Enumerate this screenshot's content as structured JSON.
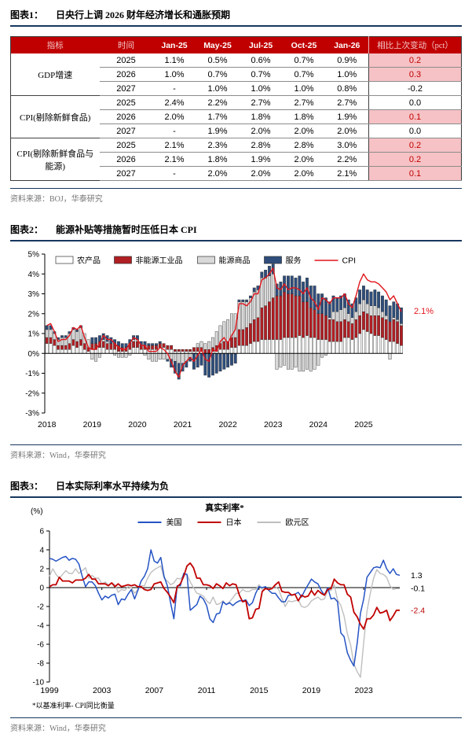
{
  "figure1": {
    "label": "图表1：",
    "title": "日央行上调 2026 财年经济增长和通胀预期",
    "source": "资料来源：BOJ，华泰研究",
    "table": {
      "headers": [
        "指标",
        "时间",
        "Jan-25",
        "May-25",
        "Jul-25",
        "Oct-25",
        "Jan-26",
        "相比上次变动（pct）"
      ],
      "groups": [
        {
          "indicator": "GDP增速",
          "rows": [
            {
              "year": "2025",
              "values": [
                "1.1%",
                "0.5%",
                "0.6%",
                "0.7%",
                "0.9%"
              ],
              "change": "0.2",
              "highlight": true
            },
            {
              "year": "2026",
              "values": [
                "1.0%",
                "0.7%",
                "0.7%",
                "0.7%",
                "1.0%"
              ],
              "change": "0.3",
              "highlight": true
            },
            {
              "year": "2027",
              "values": [
                "-",
                "1.0%",
                "1.0%",
                "1.0%",
                "0.8%"
              ],
              "change": "-0.2",
              "highlight": false
            }
          ]
        },
        {
          "indicator": "CPI(剔除新鲜食品)",
          "rows": [
            {
              "year": "2025",
              "values": [
                "2.4%",
                "2.2%",
                "2.7%",
                "2.7%",
                "2.7%"
              ],
              "change": "0.0",
              "highlight": false
            },
            {
              "year": "2026",
              "values": [
                "2.0%",
                "1.7%",
                "1.8%",
                "1.8%",
                "1.9%"
              ],
              "change": "0.1",
              "highlight": true
            },
            {
              "year": "2027",
              "values": [
                "-",
                "1.9%",
                "2.0%",
                "2.0%",
                "2.0%"
              ],
              "change": "0.0",
              "highlight": false
            }
          ]
        },
        {
          "indicator": "CPI(剔除新鲜食品与能源)",
          "rows": [
            {
              "year": "2025",
              "values": [
                "2.1%",
                "2.3%",
                "2.8%",
                "2.8%",
                "3.0%"
              ],
              "change": "0.2",
              "highlight": true
            },
            {
              "year": "2026",
              "values": [
                "2.1%",
                "1.8%",
                "1.9%",
                "2.0%",
                "2.2%"
              ],
              "change": "0.2",
              "highlight": true
            },
            {
              "year": "2027",
              "values": [
                "-",
                "2.0%",
                "2.0%",
                "2.0%",
                "2.1%"
              ],
              "change": "0.1",
              "highlight": true
            }
          ]
        }
      ]
    }
  },
  "figure2": {
    "label": "图表2：",
    "title": "能源补贴等措施暂时压低日本 CPI",
    "source": "资料来源：Wind，华泰研究"
  },
  "figure3": {
    "label": "图表3：",
    "title": "日本实际利率水平持续为负",
    "footnote": "*以基准利率- CPI同比衡量",
    "source": "资料来源：Wind，华泰研究"
  },
  "colors": {
    "accent_red": "#C00000",
    "pink_highlight": "#F6C2C5",
    "navy_rule": "#17375E"
  },
  "chart_data": [
    {
      "id": "cpi-decomp",
      "type": "bar",
      "subtype": "stacked-bars-with-line",
      "start_year": 2018,
      "frequency": "monthly",
      "ylim": [
        -3,
        5
      ],
      "ytick_step": 1,
      "ytick_suffix": "%",
      "x_year_labels": [
        2018,
        2019,
        2020,
        2021,
        2022,
        2023,
        2024,
        2025
      ],
      "end_label": "2.1%",
      "bar_stroke": "#2b2b2b",
      "series": [
        {
          "name": "农产品",
          "color": "#FFFFFF",
          "values": [
            0.5,
            0.5,
            0.4,
            0.2,
            0.2,
            0.2,
            0.2,
            0.4,
            0.3,
            0.4,
            0.2,
            0.1,
            0.2,
            0.2,
            0.3,
            0.3,
            0.2,
            0.2,
            0.2,
            0.1,
            0.1,
            0.1,
            0.2,
            0.3,
            0.3,
            0.2,
            0.2,
            0.2,
            0.2,
            0.2,
            0.3,
            0.3,
            0.2,
            0.2,
            0.1,
            0.1,
            0.1,
            0.1,
            0.1,
            0.1,
            0.1,
            0.1,
            0.0,
            0.0,
            0.1,
            0.1,
            0.2,
            0.2,
            0.2,
            0.3,
            0.3,
            0.4,
            0.4,
            0.4,
            0.5,
            0.6,
            0.6,
            0.7,
            0.7,
            0.7,
            0.7,
            0.7,
            0.7,
            0.8,
            0.8,
            0.8,
            0.8,
            0.9,
            0.8,
            0.9,
            0.8,
            0.8,
            0.7,
            0.7,
            0.7,
            0.6,
            0.6,
            0.6,
            0.6,
            0.8,
            0.8,
            0.7,
            0.8,
            1.0,
            1.2,
            1.1,
            1.0,
            0.9,
            0.9,
            0.8,
            0.7,
            0.6,
            0.6,
            0.5,
            0.4
          ]
        },
        {
          "name": "非能源工业品",
          "color": "#B01E23",
          "values": [
            0.3,
            0.3,
            0.3,
            0.2,
            0.2,
            0.2,
            0.3,
            0.3,
            0.3,
            0.3,
            0.3,
            0.2,
            0.3,
            0.3,
            0.3,
            0.3,
            0.3,
            0.3,
            0.3,
            0.3,
            0.2,
            0.2,
            0.3,
            0.3,
            0.3,
            0.2,
            0.2,
            0.2,
            0.2,
            0.2,
            0.2,
            0.2,
            0.2,
            0.2,
            0.1,
            0.1,
            0.1,
            0.1,
            0.1,
            0.2,
            0.2,
            0.2,
            0.2,
            0.2,
            0.2,
            0.3,
            0.3,
            0.4,
            0.4,
            0.5,
            0.5,
            0.8,
            0.8,
            0.9,
            1.0,
            1.1,
            1.2,
            1.6,
            1.7,
            1.9,
            2.1,
            2.2,
            2.2,
            2.3,
            2.2,
            2.2,
            2.1,
            2.0,
            1.8,
            1.7,
            1.5,
            1.4,
            1.3,
            1.3,
            1.2,
            1.1,
            1.1,
            1.0,
            1.0,
            0.9,
            0.8,
            0.8,
            0.9,
            0.9,
            0.9,
            0.9,
            0.9,
            1.0,
            1.0,
            1.0,
            1.0,
            1.0,
            1.1,
            1.1,
            1.0
          ]
        },
        {
          "name": "能源商品",
          "color": "#D9D9D9",
          "values": [
            0.4,
            0.4,
            0.3,
            0.3,
            0.4,
            0.4,
            0.5,
            0.5,
            0.5,
            0.6,
            0.5,
            0.4,
            -0.3,
            -0.4,
            -0.2,
            0.1,
            0.1,
            0.0,
            -0.1,
            -0.2,
            -0.2,
            -0.2,
            -0.1,
            0.1,
            0.1,
            0.0,
            -0.1,
            -0.3,
            -0.4,
            -0.4,
            -0.3,
            -0.3,
            -0.3,
            -0.3,
            -0.4,
            -0.5,
            -0.5,
            -0.4,
            -0.2,
            0.0,
            0.2,
            0.3,
            0.3,
            0.4,
            0.5,
            0.7,
            0.9,
            1.0,
            1.1,
            1.2,
            1.2,
            1.4,
            1.4,
            1.3,
            1.3,
            1.4,
            1.4,
            1.5,
            1.4,
            1.3,
            1.2,
            -0.8,
            -0.7,
            -0.6,
            -0.8,
            -0.8,
            -0.7,
            -0.9,
            -0.9,
            -0.8,
            -0.9,
            -0.8,
            -0.6,
            -0.2,
            -0.1,
            0.1,
            0.4,
            0.5,
            0.6,
            0.6,
            0.4,
            0.3,
            0.4,
            0.6,
            0.6,
            0.5,
            0.5,
            0.5,
            0.4,
            0.3,
            0.2,
            -0.3,
            0.1,
            0.1,
            0.1
          ]
        },
        {
          "name": "服务",
          "color": "#2E4D7B",
          "values": [
            0.2,
            0.2,
            0.1,
            0.1,
            0.1,
            0.1,
            0.1,
            0.1,
            0.1,
            0.1,
            0.0,
            0.0,
            0.3,
            0.3,
            0.3,
            0.3,
            0.3,
            0.3,
            0.2,
            0.2,
            0.2,
            0.2,
            0.2,
            0.2,
            0.2,
            0.2,
            0.2,
            0.1,
            0.1,
            0.1,
            0.1,
            0.0,
            -0.1,
            -0.4,
            -0.6,
            -0.8,
            -0.4,
            -0.3,
            -0.2,
            -0.8,
            -0.7,
            -0.6,
            -1.1,
            -1.2,
            -1.1,
            -1.0,
            -0.9,
            -0.8,
            -0.7,
            -0.6,
            -0.5,
            0.1,
            0.1,
            0.1,
            0.1,
            0.2,
            0.2,
            0.3,
            0.4,
            0.5,
            0.5,
            0.6,
            0.7,
            0.8,
            0.9,
            0.9,
            0.9,
            1.0,
            1.0,
            1.2,
            1.1,
            1.2,
            1.0,
            1.0,
            0.9,
            0.8,
            0.8,
            0.7,
            0.7,
            0.7,
            0.7,
            0.7,
            0.7,
            0.7,
            0.7,
            0.7,
            0.7,
            0.8,
            0.8,
            0.8,
            0.8,
            0.8,
            0.8,
            0.8,
            0.8
          ]
        }
      ],
      "line": {
        "name": "CPI",
        "color": "#E0151B",
        "values": [
          1.4,
          1.5,
          1.1,
          0.6,
          0.7,
          0.7,
          0.9,
          1.3,
          1.2,
          1.4,
          0.8,
          0.3,
          0.2,
          0.2,
          0.5,
          0.9,
          0.7,
          0.7,
          0.5,
          0.3,
          0.2,
          0.2,
          0.5,
          0.8,
          0.7,
          0.4,
          0.4,
          0.1,
          0.1,
          0.1,
          0.3,
          0.2,
          0.0,
          -0.4,
          -0.9,
          -1.2,
          -0.6,
          -0.4,
          -0.2,
          -0.4,
          -0.1,
          0.2,
          -0.3,
          -0.4,
          0.2,
          0.1,
          0.6,
          0.8,
          0.5,
          0.9,
          1.2,
          2.5,
          2.5,
          2.4,
          2.6,
          3.0,
          3.0,
          3.7,
          3.8,
          4.0,
          4.3,
          3.3,
          3.2,
          3.5,
          3.2,
          3.3,
          3.3,
          3.2,
          3.0,
          3.3,
          2.8,
          2.6,
          2.2,
          2.8,
          2.7,
          2.5,
          2.8,
          2.8,
          2.8,
          3.0,
          2.5,
          2.3,
          2.9,
          3.6,
          4.0,
          3.7,
          3.6,
          3.6,
          3.5,
          3.3,
          3.1,
          2.7,
          2.9,
          2.5,
          2.1
        ]
      }
    },
    {
      "id": "real-rates",
      "type": "line",
      "title": "真实利率*",
      "ylabel": "(%)",
      "start_year": 1999,
      "frequency": "quarterly",
      "ylim": [
        -10,
        6
      ],
      "ytick_step": 2,
      "x_year_labels": [
        1999,
        2003,
        2007,
        2011,
        2015,
        2019,
        2023
      ],
      "series": [
        {
          "name": "美国",
          "color": "#2553C4",
          "width": 1.5,
          "values": [
            3.1,
            3.0,
            2.8,
            3.0,
            3.2,
            3.3,
            2.9,
            3.1,
            3.0,
            2.5,
            1.2,
            0.1,
            0.6,
            0.6,
            0.2,
            -0.6,
            -1.3,
            -0.9,
            -1.1,
            -0.8,
            -0.7,
            -1.8,
            -1.2,
            -1.3,
            -0.7,
            -0.2,
            -1.2,
            -0.3,
            0.7,
            1.2,
            2.0,
            4.0,
            2.8,
            2.6,
            3.2,
            1.2,
            0.2,
            -1.6,
            -3.3,
            0.2,
            0.2,
            1.5,
            1.4,
            -2.4,
            -2.1,
            -1.8,
            -0.9,
            -1.2,
            -1.9,
            -3.3,
            -3.7,
            -2.8,
            -2.7,
            -1.5,
            -1.8,
            -1.6,
            -1.9,
            -1.6,
            -1.4,
            -1.4,
            -1.3,
            -1.9,
            -1.6,
            -0.6,
            0.1,
            0.0,
            0.1,
            -0.3,
            -0.6,
            -0.6,
            -1.1,
            -1.5,
            -1.5,
            -0.8,
            -0.8,
            -0.7,
            -0.5,
            -1.0,
            -0.3,
            0.3,
            0.9,
            0.6,
            0.4,
            -0.3,
            -0.8,
            0.0,
            -1.2,
            -1.1,
            -1.5,
            -4.8,
            -5.2,
            -6.9,
            -7.7,
            -8.3,
            -5.9,
            -2.7,
            -1.2,
            1.1,
            1.6,
            2.1,
            2.2,
            2.1,
            2.9,
            2.0,
            1.5,
            2.0,
            1.4,
            1.3
          ]
        },
        {
          "name": "日本",
          "color": "#C00000",
          "width": 1.8,
          "values": [
            0.1,
            0.3,
            0.3,
            1.1,
            0.7,
            0.7,
            0.7,
            0.5,
            0.8,
            0.8,
            0.8,
            1.0,
            1.4,
            0.9,
            0.9,
            0.4,
            0.4,
            0.4,
            0.2,
            0.5,
            0.1,
            0.4,
            0.1,
            0.2,
            0.3,
            0.2,
            0.3,
            0.1,
            0.1,
            -0.2,
            -0.3,
            -0.2,
            0.4,
            0.5,
            0.6,
            -0.1,
            -0.5,
            -1.0,
            -1.6,
            0.1,
            0.4,
            1.2,
            2.3,
            2.6,
            2.1,
            1.0,
            1.0,
            0.3,
            0.3,
            0.2,
            -0.1,
            0.4,
            0.2,
            -0.1,
            0.5,
            0.2,
            0.4,
            0.3,
            -0.8,
            -1.5,
            -1.4,
            -3.3,
            -3.2,
            -2.3,
            -2.2,
            -0.4,
            -0.1,
            -0.2,
            -0.1,
            0.3,
            0.6,
            -0.4,
            -0.5,
            -0.5,
            -0.8,
            -0.7,
            -1.4,
            -0.8,
            -1.0,
            -0.9,
            -0.3,
            -0.8,
            -0.3,
            -0.6,
            -0.8,
            -0.2,
            -0.1,
            0.9,
            0.5,
            0.3,
            0.3,
            -0.7,
            -1.0,
            -2.6,
            -3.1,
            -3.9,
            -4.4,
            -3.3,
            -3.3,
            -2.9,
            -2.1,
            -2.7,
            -2.6,
            -2.4,
            -3.5,
            -3.0,
            -2.4,
            -2.4
          ]
        },
        {
          "name": "欧元区",
          "color": "#BFBFBF",
          "width": 1.4,
          "values": [
            1.2,
            2.0,
            1.4,
            1.0,
            1.4,
            1.8,
            1.5,
            1.5,
            2.0,
            1.5,
            1.8,
            2.1,
            1.0,
            1.3,
            1.0,
            1.0,
            0.4,
            0.6,
            0.3,
            0.5,
            0.3,
            -0.5,
            -0.2,
            -0.3,
            0.1,
            0.0,
            -0.6,
            -0.2,
            0.2,
            0.2,
            1.0,
            1.6,
            1.9,
            2.1,
            2.3,
            1.0,
            0.7,
            0.3,
            0.5,
            1.0,
            0.9,
            1.3,
            1.4,
            0.6,
            0.0,
            -0.6,
            -0.7,
            -0.9,
            -1.4,
            -1.7,
            -1.0,
            -1.8,
            -1.7,
            -1.4,
            -1.8,
            -1.5,
            -1.1,
            -0.6,
            -0.6,
            -0.2,
            -0.4,
            -0.4,
            -0.2,
            -0.2,
            0.3,
            -0.2,
            -0.1,
            -0.2,
            0.0,
            0.1,
            -0.2,
            -1.1,
            -2.0,
            -1.4,
            -1.5,
            -1.4,
            -1.3,
            -2.0,
            -2.1,
            -1.9,
            -1.4,
            -1.2,
            -1.0,
            -1.3,
            -1.2,
            -0.3,
            -0.3,
            0.3,
            -1.3,
            -1.9,
            -3.0,
            -4.9,
            -6.1,
            -8.1,
            -8.9,
            -9.5,
            -5.8,
            -2.5,
            -0.6,
            1.0,
            1.9,
            1.5,
            1.4,
            1.1,
            0.2,
            -0.2,
            -0.1,
            -0.1
          ]
        }
      ],
      "end_labels": [
        {
          "text": "1.3",
          "color": "#000000",
          "series_index": 0
        },
        {
          "text": "-0.1",
          "color": "#000000",
          "series_index": 2
        },
        {
          "text": "-2.4",
          "color": "#C00000",
          "series_index": 1
        }
      ]
    }
  ]
}
